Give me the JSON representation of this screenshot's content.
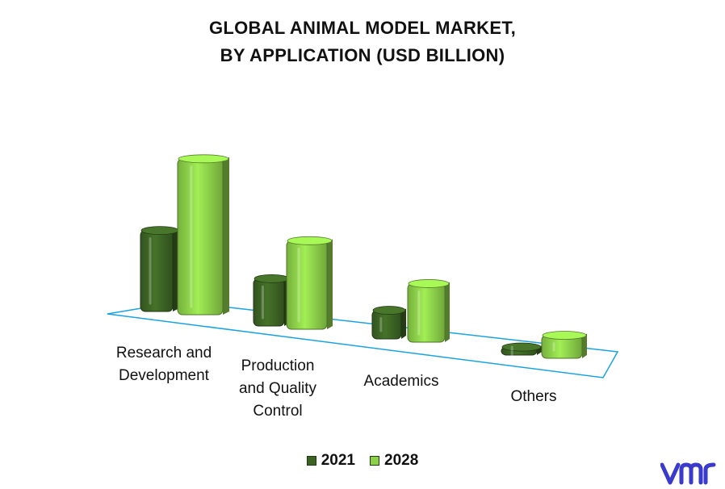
{
  "title_line1": "GLOBAL ANIMAL MODEL MARKET,",
  "title_line2": "BY APPLICATION (USD BILLION)",
  "colors": {
    "series_2021": "#3c6324",
    "series_2028": "#8ccf49",
    "floor_line": "#1aa3e0",
    "logo": "#3a3acc"
  },
  "chart_data": {
    "type": "bar",
    "title": "GLOBAL ANIMAL MODEL MARKET, BY APPLICATION (USD BILLION)",
    "categories": [
      "Research and Development",
      "Production and Quality Control",
      "Academics",
      "Others"
    ],
    "category_lines": [
      [
        "Research and",
        "Development"
      ],
      [
        "Production",
        "and Quality",
        "Control"
      ],
      [
        "Academics"
      ],
      [
        "Others"
      ]
    ],
    "series": [
      {
        "name": "2021",
        "values": [
          0.45,
          0.27,
          0.17,
          0.06
        ]
      },
      {
        "name": "2028",
        "values": [
          0.85,
          0.49,
          0.33,
          0.14
        ]
      }
    ],
    "ylim": [
      0,
      1.0
    ],
    "grid": false,
    "legend": "bottom",
    "style": "3d-bars"
  },
  "legend": [
    {
      "label": "2021",
      "color_key": "series_2021"
    },
    {
      "label": "2028",
      "color_key": "series_2028"
    }
  ],
  "logo_text": "vmr"
}
